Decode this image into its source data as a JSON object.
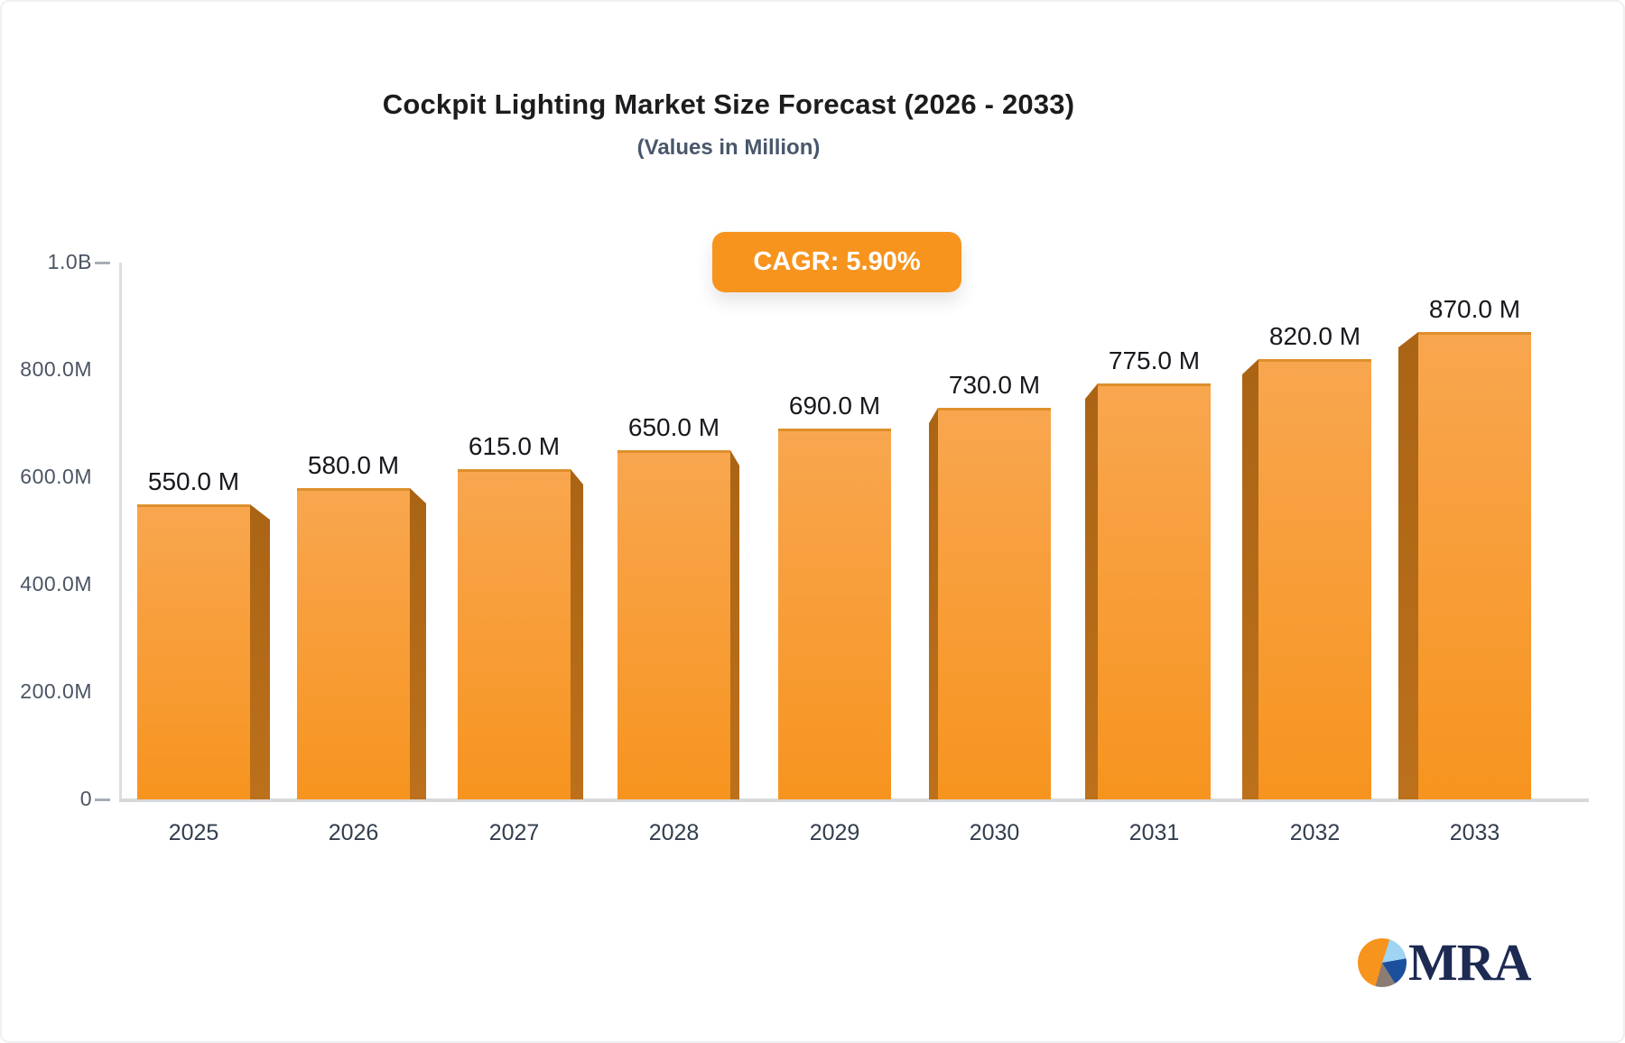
{
  "page": {
    "title": "Cockpit Lighting Market Size Forecast (2026 - 2033)",
    "subtitle": "(Values in Million)"
  },
  "chart_data": {
    "type": "bar",
    "title": "Cockpit Lighting Market Size Forecast (2026 - 2033)",
    "subtitle": "(Values in Million)",
    "annotation": "CAGR: 5.90%",
    "categories": [
      "2025",
      "2026",
      "2027",
      "2028",
      "2029",
      "2030",
      "2031",
      "2032",
      "2033"
    ],
    "values": [
      550,
      580,
      615,
      650,
      690,
      730,
      775,
      820,
      870
    ],
    "value_labels": [
      "550.0 M",
      "580.0 M",
      "615.0 M",
      "650.0 M",
      "690.0 M",
      "730.0 M",
      "775.0 M",
      "820.0 M",
      "870.0 M"
    ],
    "xlabel": "",
    "ylabel": "",
    "ylim": [
      0,
      1000
    ],
    "grid": false,
    "legend": false,
    "y_ticks": [
      {
        "label": "1.0B",
        "value": 1000,
        "dash": true
      },
      {
        "label": "800.0M",
        "value": 800,
        "dash": false
      },
      {
        "label": "600.0M",
        "value": 600,
        "dash": false
      },
      {
        "label": "400.0M",
        "value": 400,
        "dash": false
      },
      {
        "label": "200.0M",
        "value": 200,
        "dash": false
      },
      {
        "label": "0",
        "value": 0,
        "dash": true
      }
    ],
    "colors": {
      "bar_gradient_top": "#f8a64f",
      "bar_gradient_bottom": "#f7941f",
      "bar_top_edge": "#df8f2b",
      "bar_side_dark": "#bc701b",
      "bar_side_darker": "#aa6414",
      "axis_line": "#dcdee0",
      "tick_text": "#4b5563",
      "category_text": "#333e4e",
      "value_text": "#16181d",
      "badge_bg": "#f7941e",
      "badge_text": "#ffffff"
    }
  },
  "logo": {
    "text": "MRA",
    "pie_orange": "#f7941e",
    "pie_lightblue": "#9fd4f2",
    "pie_navy": "#1c4f9c",
    "pie_gray": "#8d7c74",
    "text_color": "#1d2a52"
  }
}
